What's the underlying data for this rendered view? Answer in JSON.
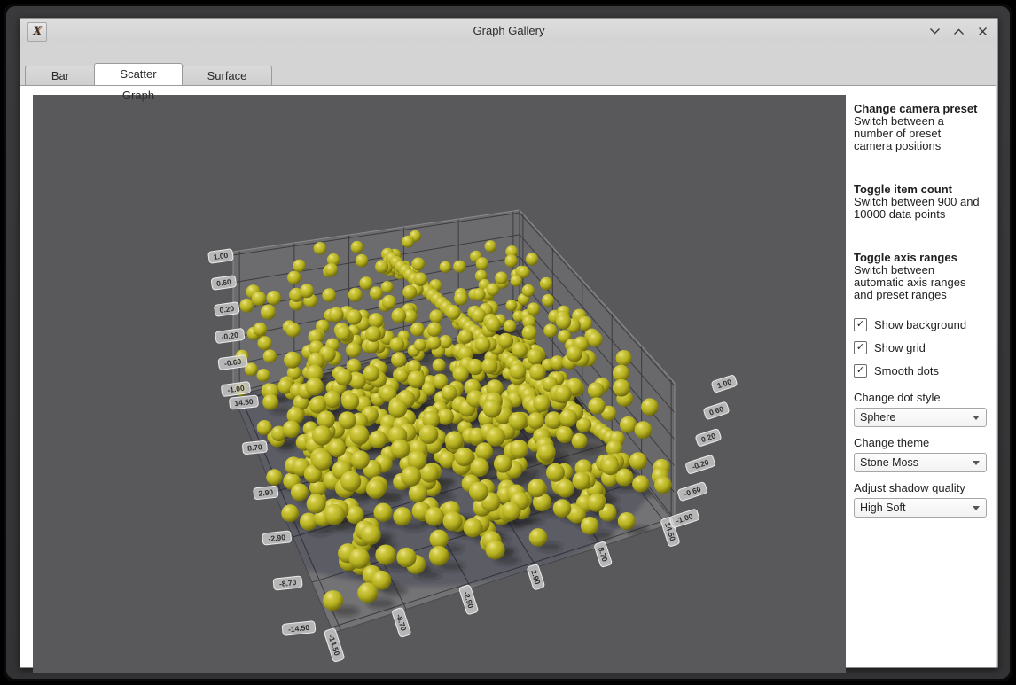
{
  "window": {
    "title": "Graph Gallery",
    "icon_glyph": "X",
    "icons": {
      "minimize": "chevron-down",
      "maximize": "chevron-up",
      "close": "x",
      "dropdown": "triangle-down",
      "check": "✓"
    }
  },
  "tabs": [
    {
      "label": "Bar Graph",
      "active": false
    },
    {
      "label": "Scatter Graph",
      "active": true
    },
    {
      "label": "Surface Graph",
      "active": false
    }
  ],
  "panel": {
    "sections": [
      {
        "title": "Change camera preset",
        "lines": [
          "Switch between a",
          "number of preset",
          "camera positions"
        ]
      },
      {
        "title": "Toggle item count",
        "lines": [
          "Switch between 900 and",
          "10000 data points"
        ]
      },
      {
        "title": "Toggle axis ranges",
        "lines": [
          "Switch between",
          "automatic axis ranges",
          "and preset ranges"
        ]
      }
    ],
    "checkboxes": [
      {
        "label": "Show background",
        "checked": true
      },
      {
        "label": "Show grid",
        "checked": true
      },
      {
        "label": "Smooth dots",
        "checked": true
      }
    ],
    "dropdowns": [
      {
        "label": "Change dot style",
        "value": "Sphere"
      },
      {
        "label": "Change theme",
        "value": "Stone Moss"
      },
      {
        "label": "Adjust shadow quality",
        "value": "High Soft"
      }
    ]
  },
  "chart_data": {
    "type": "scatter",
    "projection": "3d",
    "title": "",
    "x_ticks": [
      -14.5,
      -8.7,
      -2.9,
      2.9,
      8.7,
      14.5
    ],
    "z_ticks": [
      14.5,
      8.7,
      2.9,
      -2.9,
      -8.7,
      -14.5
    ],
    "y_ticks": [
      1.0,
      0.6,
      0.2,
      -0.2,
      -0.6,
      -1.0
    ],
    "tick_format_decimals": 2,
    "x_range": [
      -15.17,
      15.17
    ],
    "z_range": [
      -15.17,
      15.17
    ],
    "y_range": [
      -1.05,
      1.05
    ],
    "grid": true,
    "background": true,
    "point_count": 900,
    "random_points_rendered": 620,
    "line_series": {
      "from": {
        "x": 0,
        "y": 0.95,
        "z": 12.5
      },
      "to": {
        "x": 15,
        "y": -0.95,
        "z": -3
      },
      "points": 48
    },
    "colors": {
      "point": "#b5b120",
      "point_highlight": "#ece586",
      "point_dark": "#5e5a0a",
      "chart_background": "#59595b",
      "floor": "#737375",
      "wall_left": "#6c6c6e",
      "wall_right": "#69696b",
      "grid_line": "#3c3c3f",
      "edge_line": "#8b8b8d",
      "label_text": "#2e2e2e",
      "label_fill": "rgba(205,205,205,0.8)"
    }
  }
}
